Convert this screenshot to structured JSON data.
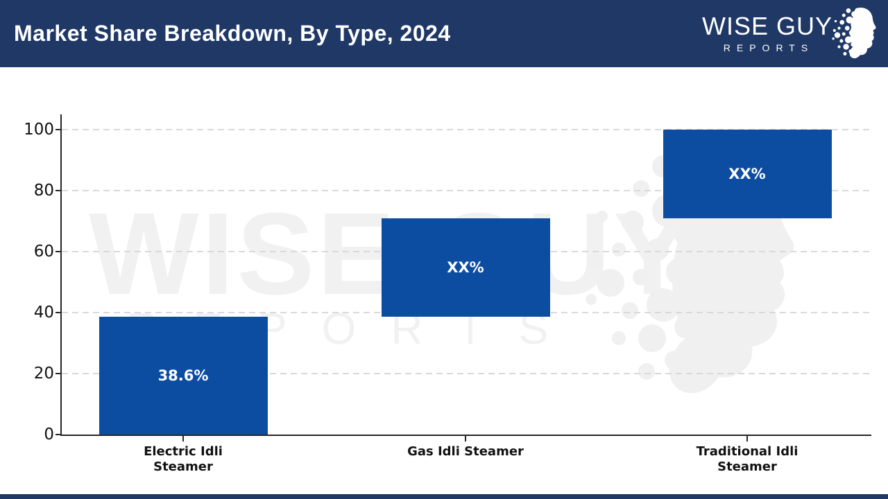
{
  "header": {
    "title": "Market Share Breakdown, By Type, 2024",
    "logo": {
      "primary": "WISE GUY",
      "secondary": "REPORTS"
    },
    "background_color": "#1f3866",
    "title_color": "#ffffff"
  },
  "watermark": {
    "primary": "WISE GUY",
    "secondary": "REPORTS"
  },
  "chart_data": {
    "type": "bar",
    "subtype": "floating-waterfall",
    "title": "Market Share Breakdown, By Type, 2024",
    "categories": [
      "Electric Idli Steamer",
      "Gas Idli Steamer",
      "Traditional Idli Steamer"
    ],
    "category_labels": [
      "Electric Idli\nSteamer",
      "Gas Idli Steamer",
      "Traditional Idli\nSteamer"
    ],
    "bars": [
      {
        "category": "Electric Idli Steamer",
        "start": 0,
        "end": 38.6,
        "label": "38.6%"
      },
      {
        "category": "Gas Idli Steamer",
        "start": 38.6,
        "end": 71,
        "label": "XX%"
      },
      {
        "category": "Traditional Idli Steamer",
        "start": 71,
        "end": 100,
        "label": "XX%"
      }
    ],
    "ylim": [
      0,
      105
    ],
    "yticks": [
      0,
      20,
      40,
      60,
      80,
      100
    ],
    "xlabel": "",
    "ylabel": "",
    "grid": "horizontal-dashed",
    "legend": "none",
    "bar_color": "#0d4da1",
    "bar_label_color": "#ffffff",
    "axis_color": "#262626",
    "gridline_color": "#d9d9d9"
  },
  "footer": {
    "background_color": "#1f3866"
  }
}
